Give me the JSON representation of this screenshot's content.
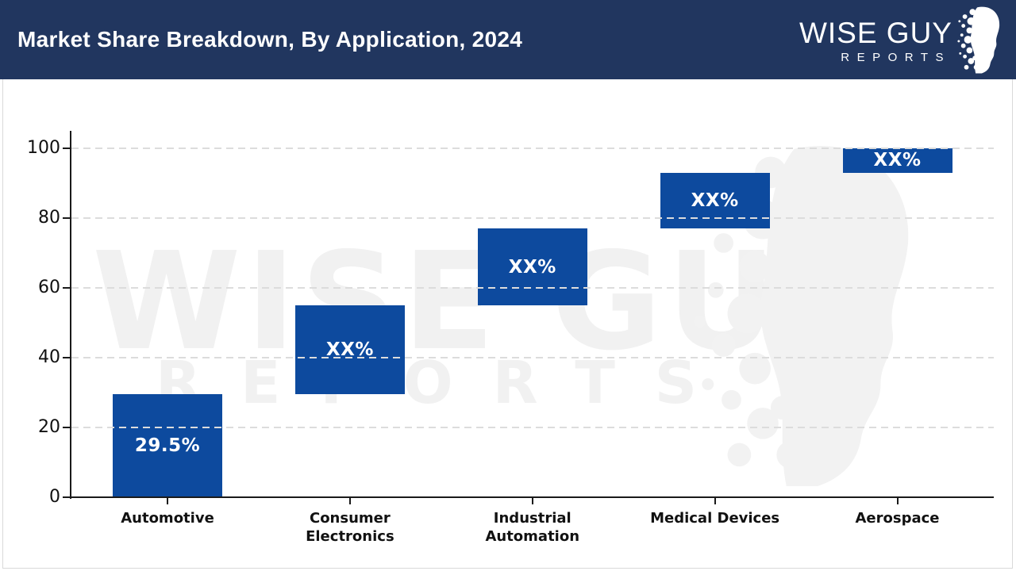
{
  "header": {
    "title": "Market Share Breakdown, By Application, 2024",
    "logo": {
      "name": "WISE GUY",
      "sub": "REPORTS"
    }
  },
  "watermark": {
    "line1": "WISE GUY",
    "line2": "REPORTS"
  },
  "chart_data": {
    "type": "bar",
    "variant": "waterfall",
    "title": "Market Share Breakdown, By Application, 2024",
    "categories": [
      "Automotive",
      "Consumer Electronics",
      "Industrial Automation",
      "Medical Devices",
      "Aerospace"
    ],
    "segments": [
      {
        "category": "Automotive",
        "tick_lines": [
          "Automotive"
        ],
        "start": 0,
        "end": 29.5,
        "label": "29.5%"
      },
      {
        "category": "Consumer Electronics",
        "tick_lines": [
          "Consumer",
          "Electronics"
        ],
        "start": 29.5,
        "end": 55,
        "label": "XX%"
      },
      {
        "category": "Industrial Automation",
        "tick_lines": [
          "Industrial",
          "Automation"
        ],
        "start": 55,
        "end": 77,
        "label": "XX%"
      },
      {
        "category": "Medical Devices",
        "tick_lines": [
          "Medical Devices"
        ],
        "start": 77,
        "end": 93,
        "label": "XX%"
      },
      {
        "category": "Aerospace",
        "tick_lines": [
          "Aerospace"
        ],
        "start": 93,
        "end": 100,
        "label": "XX%"
      }
    ],
    "xlabel": "",
    "ylabel": "",
    "ylim": [
      0,
      100
    ],
    "yticks": [
      0,
      20,
      40,
      60,
      80,
      100
    ],
    "grid": "horizontal dashed, drawn over bars",
    "legend": "none",
    "bar_color": "#0d4a9e",
    "bar_label_color": "#ffffff"
  },
  "colors": {
    "header_bg": "#21365f",
    "bar": "#0d4a9e",
    "grid": "#dcdcdc",
    "axis": "#1a1a1a",
    "watermark": "#f1f1f1",
    "border": "#d9d9d9"
  }
}
